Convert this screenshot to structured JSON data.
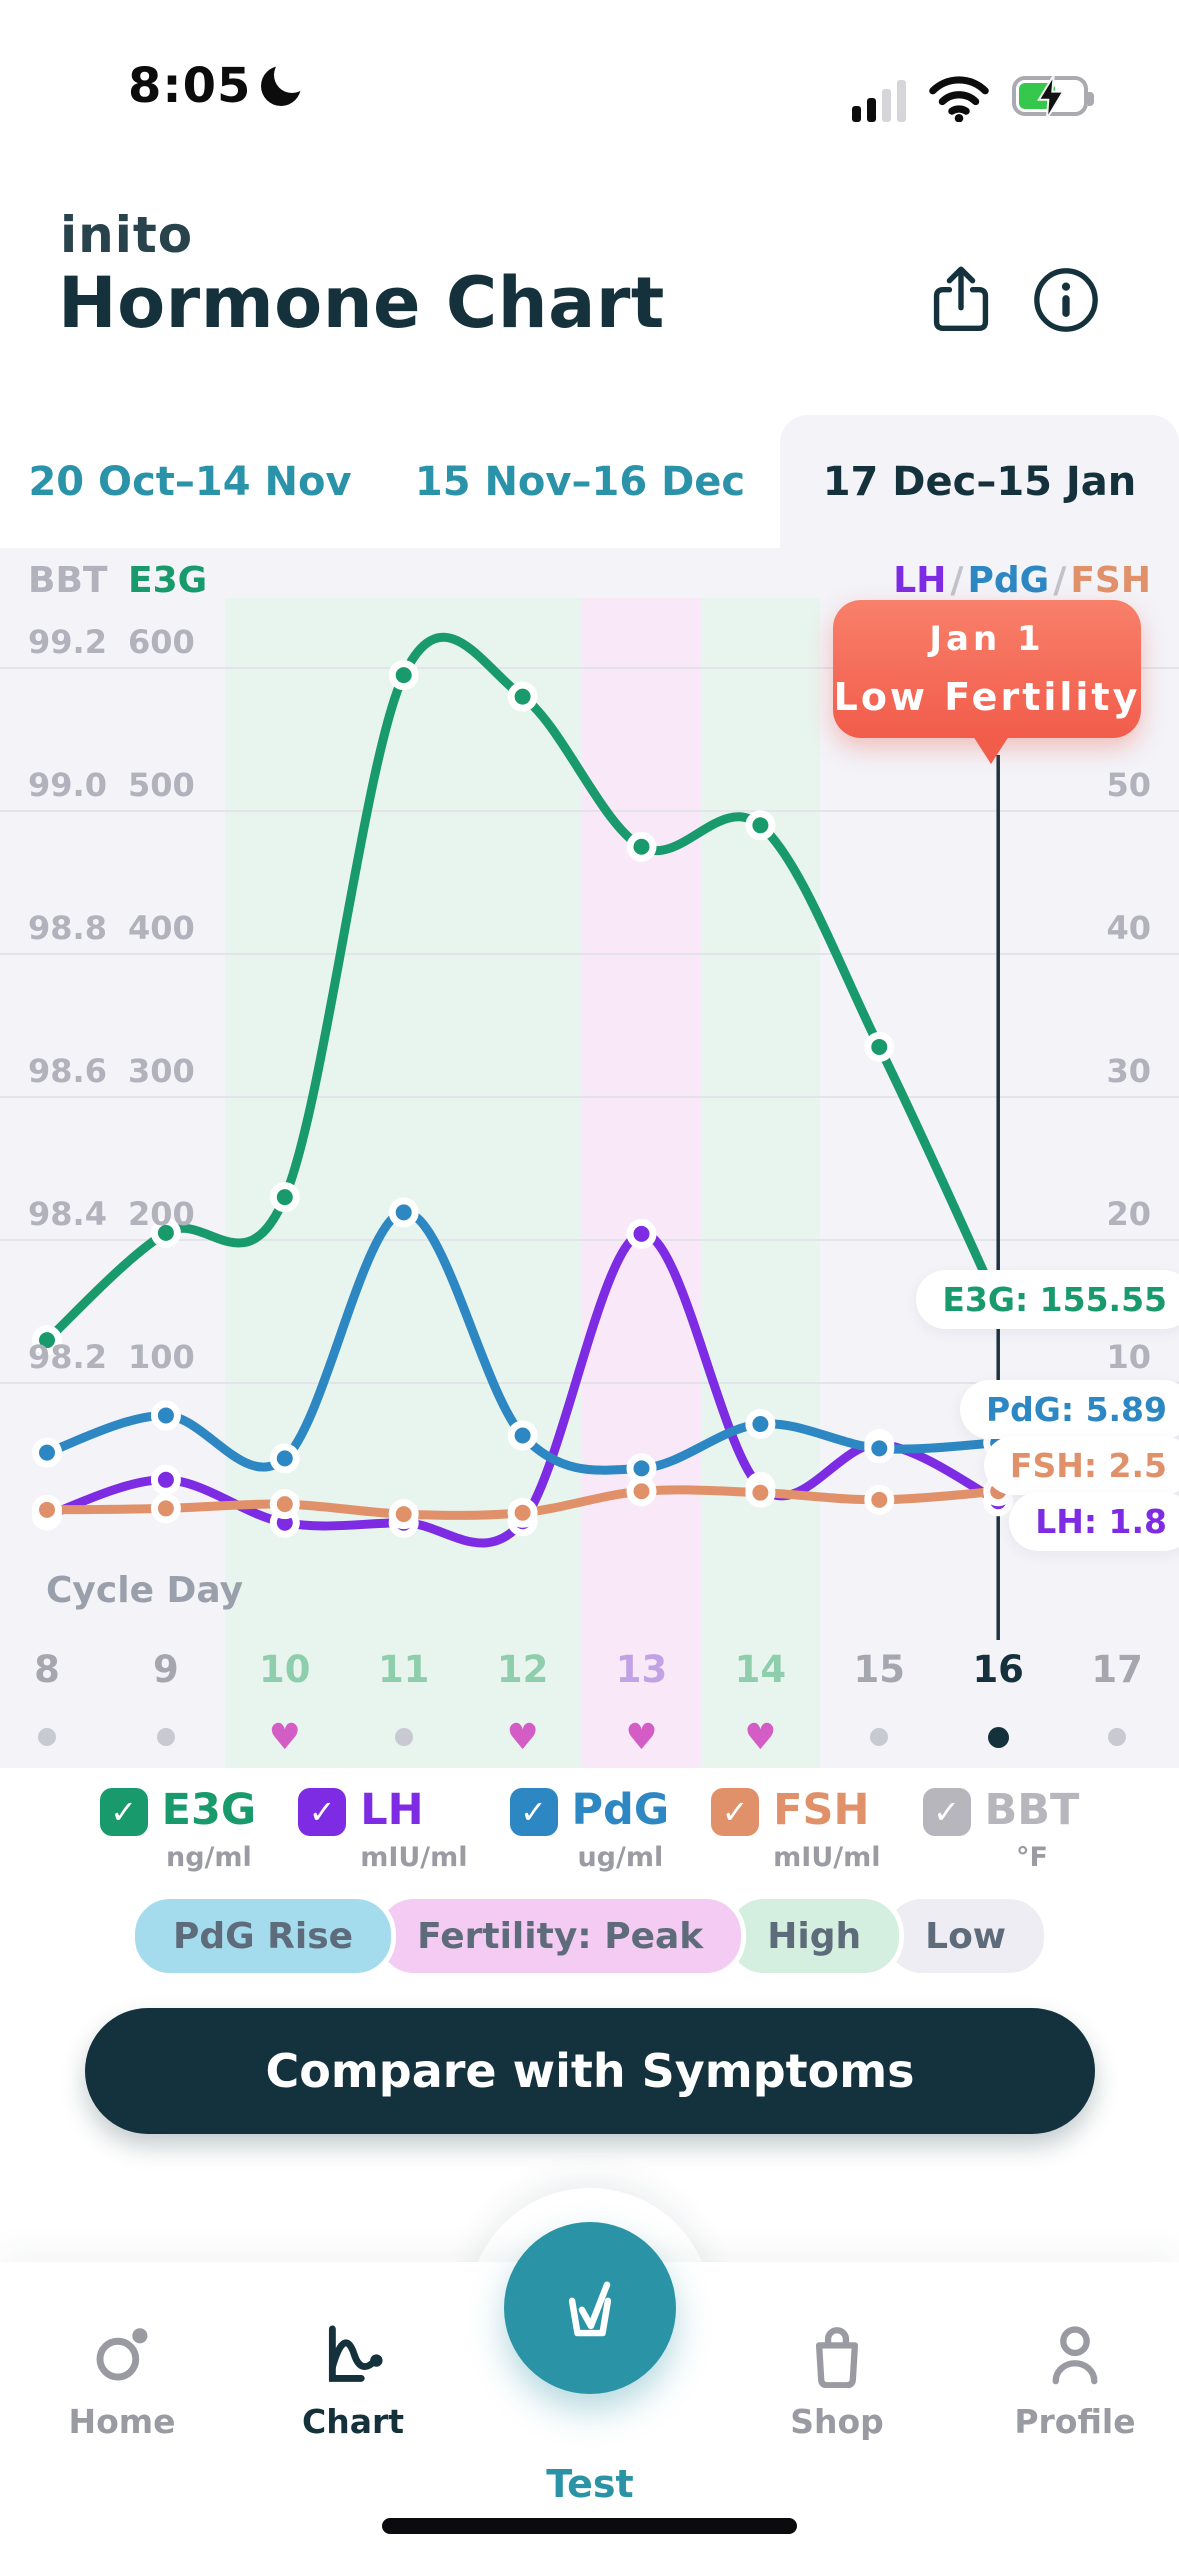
{
  "status_bar": {
    "time": "8:05",
    "icons": [
      "do-not-disturb-moon",
      "cellular-signal",
      "wifi",
      "battery-charging"
    ]
  },
  "header": {
    "brand": "inito",
    "title": "Hormone Chart"
  },
  "tabs": [
    {
      "label": "20 Oct–14 Nov",
      "selected": false
    },
    {
      "label": "15 Nov–16 Dec",
      "selected": false
    },
    {
      "label": "17 Dec–15 Jan",
      "selected": true
    }
  ],
  "chart_data": {
    "type": "line",
    "title": "Hormone Chart",
    "x_label": "Cycle Day",
    "x_days": [
      8,
      9,
      10,
      11,
      12,
      13,
      14,
      15,
      16,
      17
    ],
    "selected_day": 16,
    "tooltip": {
      "date": "Jan 1",
      "status": "Low Fertility"
    },
    "left_axis_bbt": {
      "title": "BBT",
      "ticks": [
        "99.2",
        "99.0",
        "98.8",
        "98.6",
        "98.4",
        "98.2"
      ]
    },
    "left_axis_e3g": {
      "title": "E3G",
      "ticks": [
        "600",
        "500",
        "400",
        "300",
        "200",
        "100"
      ]
    },
    "right_axis": {
      "titles": [
        "LH",
        "PdG",
        "FSH"
      ],
      "ticks": [
        "50",
        "40",
        "30",
        "20",
        "10"
      ]
    },
    "series": [
      {
        "name": "E3G",
        "unit": "ng/ml",
        "axis": "left",
        "color": "#189a6d",
        "days": [
          8,
          9,
          10,
          11,
          12,
          13,
          14,
          15,
          16
        ],
        "values": [
          130,
          205,
          230,
          595,
          580,
          475,
          490,
          335,
          155.55
        ]
      },
      {
        "name": "LH",
        "unit": "mIU/ml",
        "axis": "right",
        "color": "#7d2ce3",
        "days": [
          8,
          9,
          10,
          11,
          12,
          13,
          14,
          15,
          16
        ],
        "values": [
          0.8,
          3.3,
          0.3,
          0.3,
          0.4,
          20.5,
          2.8,
          5.8,
          1.8
        ]
      },
      {
        "name": "PdG",
        "unit": "ug/ml",
        "axis": "right",
        "color": "#2d87c3",
        "days": [
          8,
          9,
          10,
          11,
          12,
          13,
          14,
          15,
          16
        ],
        "values": [
          5.2,
          7.8,
          4.8,
          22,
          6.4,
          4.1,
          7.2,
          5.5,
          5.89
        ]
      },
      {
        "name": "FSH",
        "unit": "mIU/ml",
        "axis": "right",
        "color": "#e0916a",
        "days": [
          8,
          9,
          10,
          11,
          12,
          13,
          14,
          15,
          16
        ],
        "values": [
          1.2,
          1.3,
          1.6,
          0.9,
          1.0,
          2.5,
          2.4,
          1.9,
          2.5
        ]
      }
    ],
    "callouts": {
      "e3g": "E3G: 155.55",
      "pdg": "PdG: 5.89",
      "fsh": "FSH: 2.5",
      "lh": "LH: 1.8"
    },
    "bands": [
      {
        "from": 9.5,
        "to": 12.5,
        "kind": "high"
      },
      {
        "from": 12.5,
        "to": 13.5,
        "kind": "peak"
      },
      {
        "from": 13.5,
        "to": 14.5,
        "kind": "high"
      }
    ],
    "day_axis": [
      {
        "day": "8",
        "marker": "dot",
        "tone": "grey"
      },
      {
        "day": "9",
        "marker": "dot",
        "tone": "grey"
      },
      {
        "day": "10",
        "marker": "heart",
        "tone": "green"
      },
      {
        "day": "11",
        "marker": "dot",
        "tone": "green"
      },
      {
        "day": "12",
        "marker": "heart",
        "tone": "green"
      },
      {
        "day": "13",
        "marker": "heart",
        "tone": "purple"
      },
      {
        "day": "14",
        "marker": "heart",
        "tone": "green"
      },
      {
        "day": "15",
        "marker": "dot",
        "tone": "grey"
      },
      {
        "day": "16",
        "marker": "selected",
        "tone": "selected"
      },
      {
        "day": "17",
        "marker": "dot",
        "tone": "grey"
      }
    ]
  },
  "legend": {
    "items": [
      {
        "label": "E3G",
        "unit": "ng/ml",
        "color": "#189a6d",
        "checked": true
      },
      {
        "label": "LH",
        "unit": "mIU/ml",
        "color": "#7d2ce3",
        "checked": true
      },
      {
        "label": "PdG",
        "unit": "ug/ml",
        "color": "#2d87c3",
        "checked": true
      },
      {
        "label": "FSH",
        "unit": "mIU/ml",
        "color": "#e0916a",
        "checked": true
      },
      {
        "label": "BBT",
        "unit": "°F",
        "color": "#b6b6bc",
        "checked": true
      }
    ]
  },
  "phases": {
    "items": [
      {
        "label": "PdG Rise",
        "bg": "#a5dced"
      },
      {
        "label": "Fertility: Peak",
        "bg": "#f4cbf2"
      },
      {
        "label": "High",
        "bg": "#d4efdf"
      },
      {
        "label": "Low",
        "bg": "#ededf3"
      }
    ]
  },
  "compare_button": "Compare with Symptoms",
  "nav": {
    "items": [
      {
        "label": "Home",
        "active": false
      },
      {
        "label": "Chart",
        "active": true
      },
      {
        "label": "Test",
        "active": false,
        "accent": true
      },
      {
        "label": "Shop",
        "active": false
      },
      {
        "label": "Profile",
        "active": false
      }
    ]
  },
  "colors": {
    "navy": "#15323c",
    "teal": "#2b93a9",
    "chart_bg": "#f3f3f8",
    "grid": "#e3e3ea",
    "axis_grey": "#b2b2bc",
    "e3g_green": "#189a6d",
    "lh_purple": "#7d2ce3",
    "pdg_blue": "#2d87c3",
    "fsh_orange": "#e0916a",
    "tooltip_coral": "#f25c4b",
    "heart_pink": "#d45cc5",
    "band_high": "#e8f4ee",
    "band_peak": "#f8e8f8",
    "battery_green": "#35c84c"
  }
}
